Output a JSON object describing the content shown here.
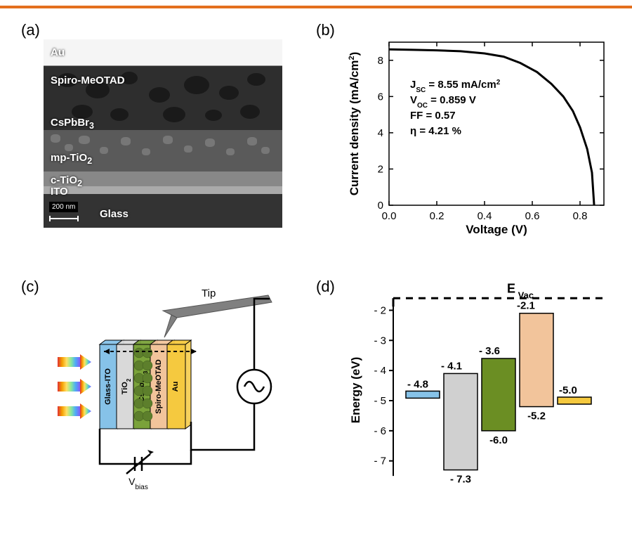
{
  "panels": {
    "a": "(a)",
    "b": "(b)",
    "c": "(c)",
    "d": "(d)"
  },
  "sem": {
    "labels": {
      "au": "Au",
      "spiro": "Spiro-MeOTAD",
      "cspbbr3": "CsPbBr",
      "cspbbr3_sub": "3",
      "mptio2": "mp-TiO",
      "mptio2_sub": "2",
      "ctio2": "c-TiO",
      "ctio2_sub": "2",
      "ito": "ITO",
      "glass": "Glass"
    },
    "scalebar": "200 nm"
  },
  "jv": {
    "xlabel": "Voltage (V)",
    "ylabel": "Current density (mA/cm",
    "ylabel_sup": "2",
    "ylabel_end": ")",
    "xlim": [
      0,
      0.9
    ],
    "ylim": [
      0,
      9
    ],
    "xticks": [
      0.0,
      0.2,
      0.4,
      0.6,
      0.8
    ],
    "yticks": [
      0,
      2,
      4,
      6,
      8
    ],
    "annot": {
      "jsc_l": "J",
      "jsc_sub": "SC",
      "jsc_r": " = 8.55 mA/cm",
      "jsc_sup": "2",
      "voc_l": "V",
      "voc_sub": "OC",
      "voc_r": " =  0.859 V",
      "ff": "FF =  0.57",
      "eta": "η = 4.21 %"
    },
    "curve": [
      [
        0.0,
        8.6
      ],
      [
        0.1,
        8.58
      ],
      [
        0.2,
        8.55
      ],
      [
        0.3,
        8.5
      ],
      [
        0.4,
        8.38
      ],
      [
        0.48,
        8.2
      ],
      [
        0.55,
        7.85
      ],
      [
        0.62,
        7.35
      ],
      [
        0.68,
        6.7
      ],
      [
        0.73,
        6.0
      ],
      [
        0.77,
        5.2
      ],
      [
        0.8,
        4.3
      ],
      [
        0.83,
        3.1
      ],
      [
        0.85,
        1.8
      ],
      [
        0.859,
        0.0
      ]
    ],
    "line_color": "#000000",
    "line_width": 3
  },
  "schematic": {
    "tip": "Tip",
    "vbias_l": "V",
    "vbias_sub": "bias",
    "layers": [
      {
        "name": "Glass-ITO",
        "fill": "#86c2e8"
      },
      {
        "name": "TiO",
        "sub": "2",
        "fill": "#d9d9d9"
      },
      {
        "name": "CsPbBr",
        "sub": "3",
        "fill": "#7aa23a"
      },
      {
        "name": "Spiro-MeOTAD",
        "fill": "#f2c49b"
      },
      {
        "name": "Au",
        "fill": "#f5c93f"
      }
    ],
    "arrow_gradient": [
      "#e03131",
      "#f59f00",
      "#ffe066",
      "#8ce99a",
      "#4dabf7",
      "#845ef7"
    ]
  },
  "energy": {
    "title_l": "E",
    "title_sub": " Vac",
    "ylabel": "Energy (eV)",
    "ylim": [
      -7.8,
      -1.5
    ],
    "yticks": [
      -2,
      -3,
      -4,
      -5,
      -6,
      -7
    ],
    "vac_level": -1.6,
    "bars": [
      {
        "top": -4.8,
        "bottom": -4.8,
        "fill": "#86c2e8",
        "lab_top": "- 4.8",
        "lab_bot": null,
        "thin": true
      },
      {
        "top": -4.1,
        "bottom": -7.3,
        "fill": "#d0d0d0",
        "lab_top": "- 4.1",
        "lab_bot": "- 7.3",
        "thin": false
      },
      {
        "top": -3.6,
        "bottom": -6.0,
        "fill": "#6b8e23",
        "lab_top": "- 3.6",
        "lab_bot": "-6.0",
        "thin": false
      },
      {
        "top": -2.1,
        "bottom": -5.2,
        "fill": "#f2c49b",
        "lab_top": "-2.1",
        "lab_bot": "-5.2",
        "thin": false
      },
      {
        "top": -5.0,
        "bottom": -5.0,
        "fill": "#f5c93f",
        "lab_top": "-5.0",
        "lab_bot": null,
        "thin": true
      }
    ]
  }
}
